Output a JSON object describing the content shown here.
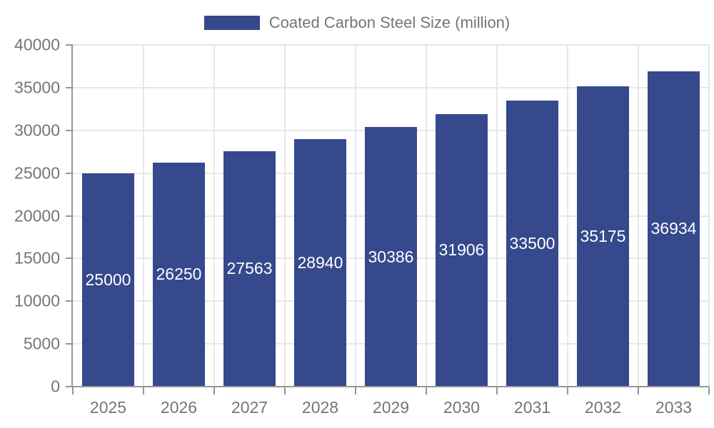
{
  "legend": {
    "label": "Coated Carbon Steel Size (million)"
  },
  "chart_data": {
    "type": "bar",
    "title": "",
    "series_name": "Coated Carbon Steel Size (million)",
    "categories": [
      "2025",
      "2026",
      "2027",
      "2028",
      "2029",
      "2030",
      "2031",
      "2032",
      "2033"
    ],
    "values": [
      25000,
      26250,
      27563,
      28940,
      30386,
      31906,
      33500,
      35175,
      36934
    ],
    "xlabel": "",
    "ylabel": "",
    "ylim": [
      0,
      40000
    ],
    "yticks": [
      0,
      5000,
      10000,
      15000,
      20000,
      25000,
      30000,
      35000,
      40000
    ],
    "grid": true,
    "legend_position": "top-center",
    "value_label_position": "inside-center",
    "colors": {
      "bar": "#35498C",
      "value_label": "#FFFFFF",
      "axis_line": "#969696",
      "tick_mark": "#969696",
      "gridline": "#E7E7E7",
      "tick_label_text": "#757575",
      "legend_text": "#757575"
    }
  }
}
